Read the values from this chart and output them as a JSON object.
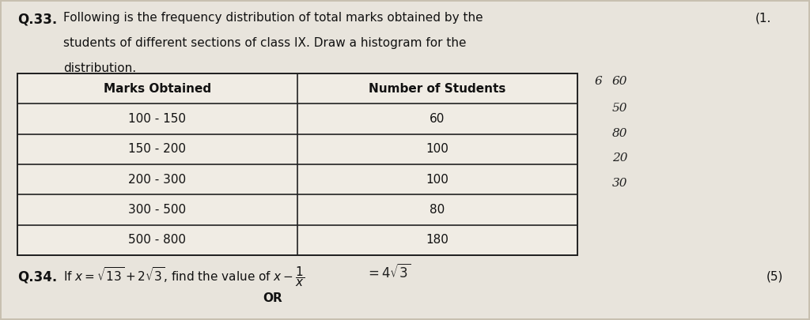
{
  "col1_header": "Marks Obtained",
  "col2_header": "Number of Students",
  "rows": [
    [
      "100 - 150",
      "60"
    ],
    [
      "150 - 200",
      "100"
    ],
    [
      "200 - 300",
      "100"
    ],
    [
      "300 - 500",
      "80"
    ],
    [
      "500 - 800",
      "180"
    ]
  ],
  "side_notes_line1": "60",
  "side_notes_rest": [
    "50",
    "80",
    "20",
    "30"
  ],
  "bg_color": "#c8c0b0",
  "page_color": "#e8e4dc",
  "table_color": "#f0ece4",
  "text_color": "#111111",
  "line_color": "#222222",
  "font_size_q": 12,
  "font_size_body": 11,
  "font_size_table": 11
}
